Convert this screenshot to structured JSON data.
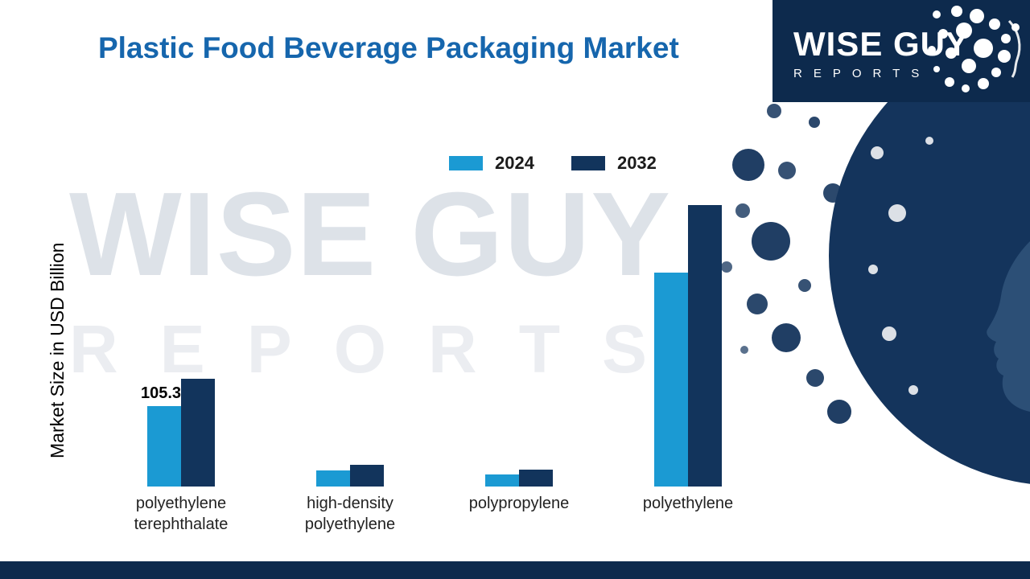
{
  "header": {
    "title": "Plastic Food Beverage Packaging Market"
  },
  "logo": {
    "name_line": "WISE GUY",
    "reports_line": "REPORTS"
  },
  "watermark": {
    "line1": "WISE GUY",
    "line2": "REPORTS"
  },
  "chart_data": {
    "type": "bar",
    "title": "Plastic Food Beverage Packaging Market",
    "ylabel": "Market Size in USD Billion",
    "xlabel": "",
    "categories": [
      "polyethylene terephthalate",
      "high-density polyethylene",
      "polypropylene",
      "polyethylene"
    ],
    "series": [
      {
        "name": "2024",
        "color": "#1b9ad3",
        "values": [
          105.3,
          21,
          16,
          280
        ]
      },
      {
        "name": "2032",
        "color": "#12345c",
        "values": [
          141,
          28,
          22,
          368
        ]
      }
    ],
    "annotations": [
      {
        "category_index": 0,
        "series": "2024",
        "text": "105.3"
      }
    ],
    "ylim": [
      0,
      380
    ],
    "legend_position": "top",
    "grid": false
  },
  "colors": {
    "title_blue": "#1666ad",
    "series_2024": "#1b9ad3",
    "series_2032": "#12345c",
    "brand_navy": "#0d2a4d"
  }
}
